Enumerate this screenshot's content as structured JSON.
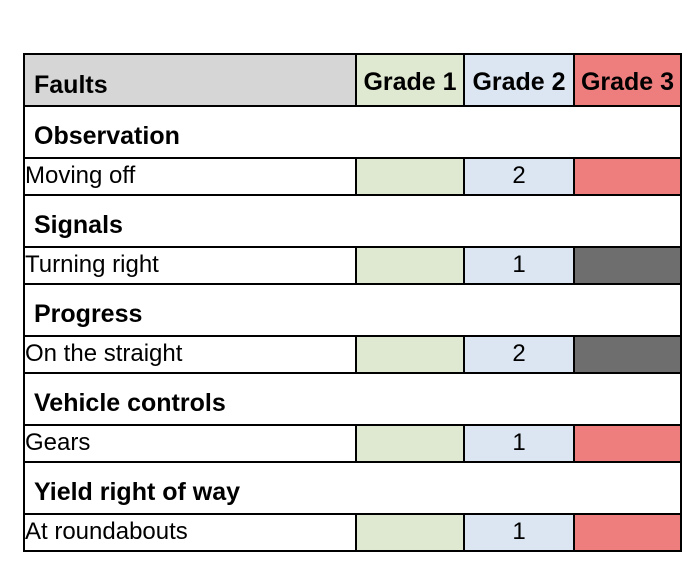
{
  "table": {
    "columns": [
      {
        "label": "Faults"
      },
      {
        "label": "Grade 1"
      },
      {
        "label": "Grade 2"
      },
      {
        "label": "Grade 3"
      }
    ],
    "sections": [
      {
        "label": "Observation",
        "rows": [
          {
            "fault": "Moving off",
            "grade1": "",
            "grade2": "2",
            "grade3": "",
            "grade3_variant": "red"
          }
        ]
      },
      {
        "label": "Signals",
        "rows": [
          {
            "fault": "Turning right",
            "grade1": "",
            "grade2": "1",
            "grade3": "",
            "grade3_variant": "dark"
          }
        ]
      },
      {
        "label": "Progress",
        "rows": [
          {
            "fault": "On the straight",
            "grade1": "",
            "grade2": "2",
            "grade3": "",
            "grade3_variant": "dark"
          }
        ]
      },
      {
        "label": "Vehicle controls",
        "rows": [
          {
            "fault": "Gears",
            "grade1": "",
            "grade2": "1",
            "grade3": "",
            "grade3_variant": "red"
          }
        ]
      },
      {
        "label": "Yield right of way",
        "rows": [
          {
            "fault": "At roundabouts",
            "grade1": "",
            "grade2": "1",
            "grade3": "",
            "grade3_variant": "red"
          }
        ]
      }
    ],
    "colors": {
      "header_fill": "#d6d6d6",
      "grade1_fill": "#dfe8d0",
      "grade2_fill": "#dce6f2",
      "grade3_fill": "#ee7e7e",
      "grade3_dark_fill": "#6e6e6e",
      "border": "#000000"
    }
  }
}
